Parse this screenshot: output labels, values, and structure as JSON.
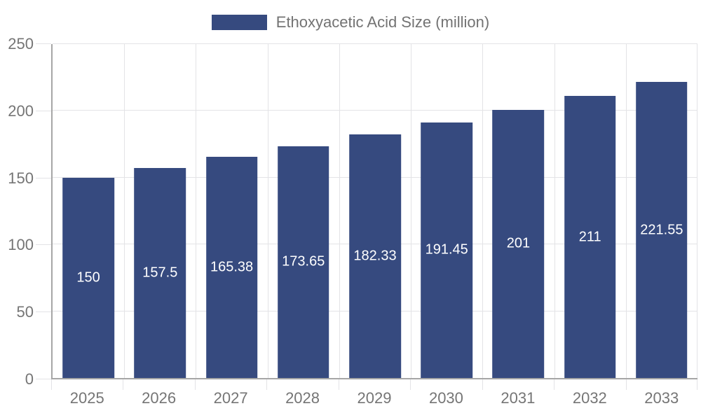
{
  "legend": {
    "label": "Ethoxyacetic Acid Size (million)"
  },
  "chart_data": {
    "type": "bar",
    "title": "",
    "xlabel": "",
    "ylabel": "",
    "categories": [
      "2025",
      "2026",
      "2027",
      "2028",
      "2029",
      "2030",
      "2031",
      "2032",
      "2033"
    ],
    "series": [
      {
        "name": "Ethoxyacetic Acid Size (million)",
        "values": [
          150,
          157.5,
          165.38,
          173.65,
          182.33,
          191.45,
          201,
          211,
          221.55
        ]
      }
    ],
    "value_labels": [
      "150",
      "157.5",
      "165.38",
      "173.65",
      "182.33",
      "191.45",
      "201",
      "211",
      "221.55"
    ],
    "ylim": [
      0,
      250
    ],
    "yticks": [
      0,
      50,
      100,
      150,
      200,
      250
    ],
    "grid": true,
    "legend_position": "top",
    "colors": {
      "bar": "#364a7f",
      "axis_line": "#a6a6a6",
      "gridline": "#e3e3e6",
      "tick_label": "#757575",
      "legend_text": "#737373",
      "value_label": "#ffffff",
      "background": "#ffffff"
    }
  }
}
